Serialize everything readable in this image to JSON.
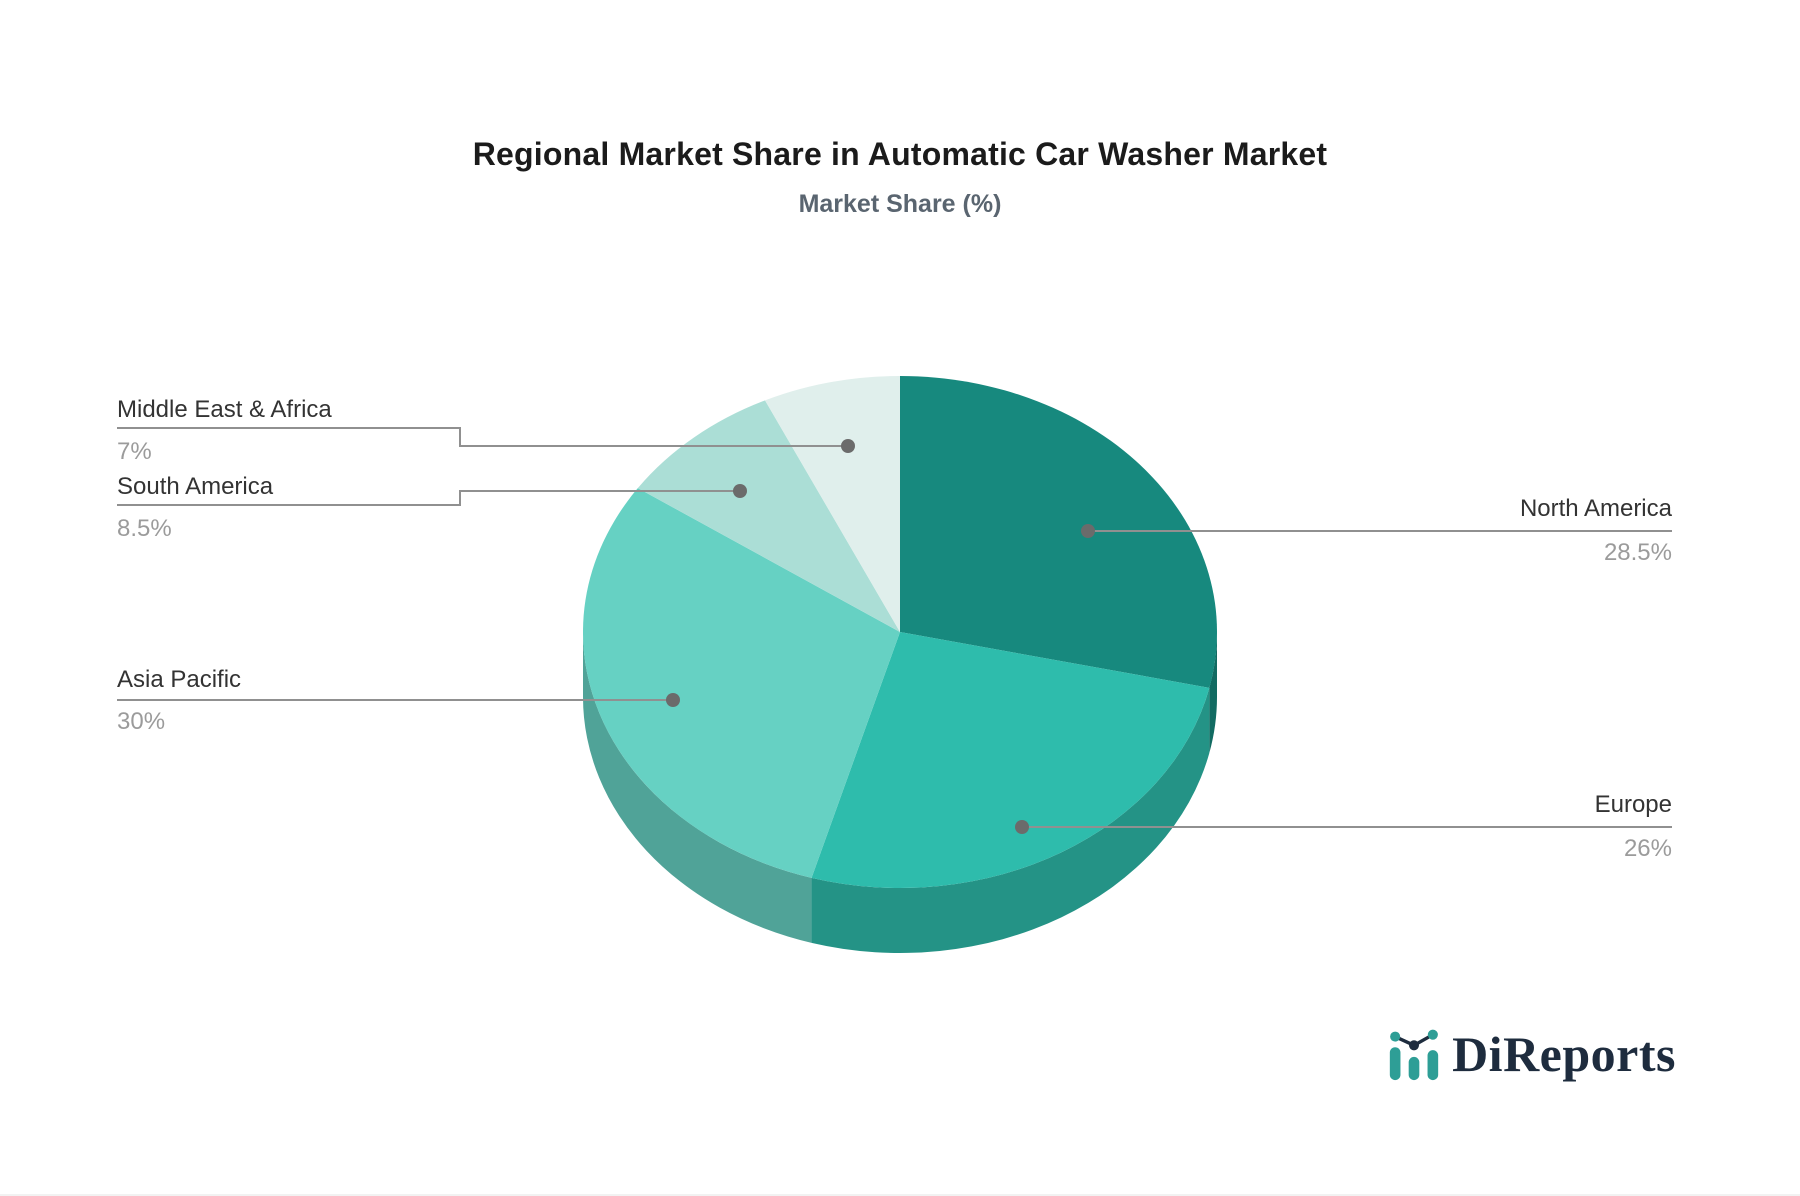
{
  "header": {
    "title": "Regional Market Share in Automatic Car Washer Market",
    "subtitle": "Market Share (%)"
  },
  "chart_data": {
    "type": "pie",
    "title": "Regional Market Share in Automatic Car Washer Market",
    "subtitle": "Market Share (%)",
    "unit": "%",
    "style": "3d",
    "start_angle_deg": 0,
    "direction": "clockwise",
    "legend_position": "callout-labels",
    "slices": [
      {
        "label": "North America",
        "value": 28.5,
        "display_value": "28.5%",
        "color": "#17897e"
      },
      {
        "label": "Europe",
        "value": 26,
        "display_value": "26%",
        "color": "#2ebcac"
      },
      {
        "label": "Asia Pacific",
        "value": 30,
        "display_value": "30%",
        "color": "#66d1c3"
      },
      {
        "label": "South America",
        "value": 8.5,
        "display_value": "8.5%",
        "color": "#abded6"
      },
      {
        "label": "Middle East & Africa",
        "value": 7,
        "display_value": "7%",
        "color": "#e0efec"
      }
    ]
  },
  "branding": {
    "logo_text": "DiReports",
    "logo_icon": "bar-chart-trend-icon"
  },
  "colors": {
    "background": "#ffffff",
    "title": "#1b1b1b",
    "subtitle": "#5a6570",
    "label_text": "#333333",
    "value_text": "#9b9b9b",
    "leader_line": "#909090",
    "leader_dot": "#6b6b6b",
    "logo_navy": "#1e2c3e",
    "logo_teal": "#2e9e96"
  }
}
